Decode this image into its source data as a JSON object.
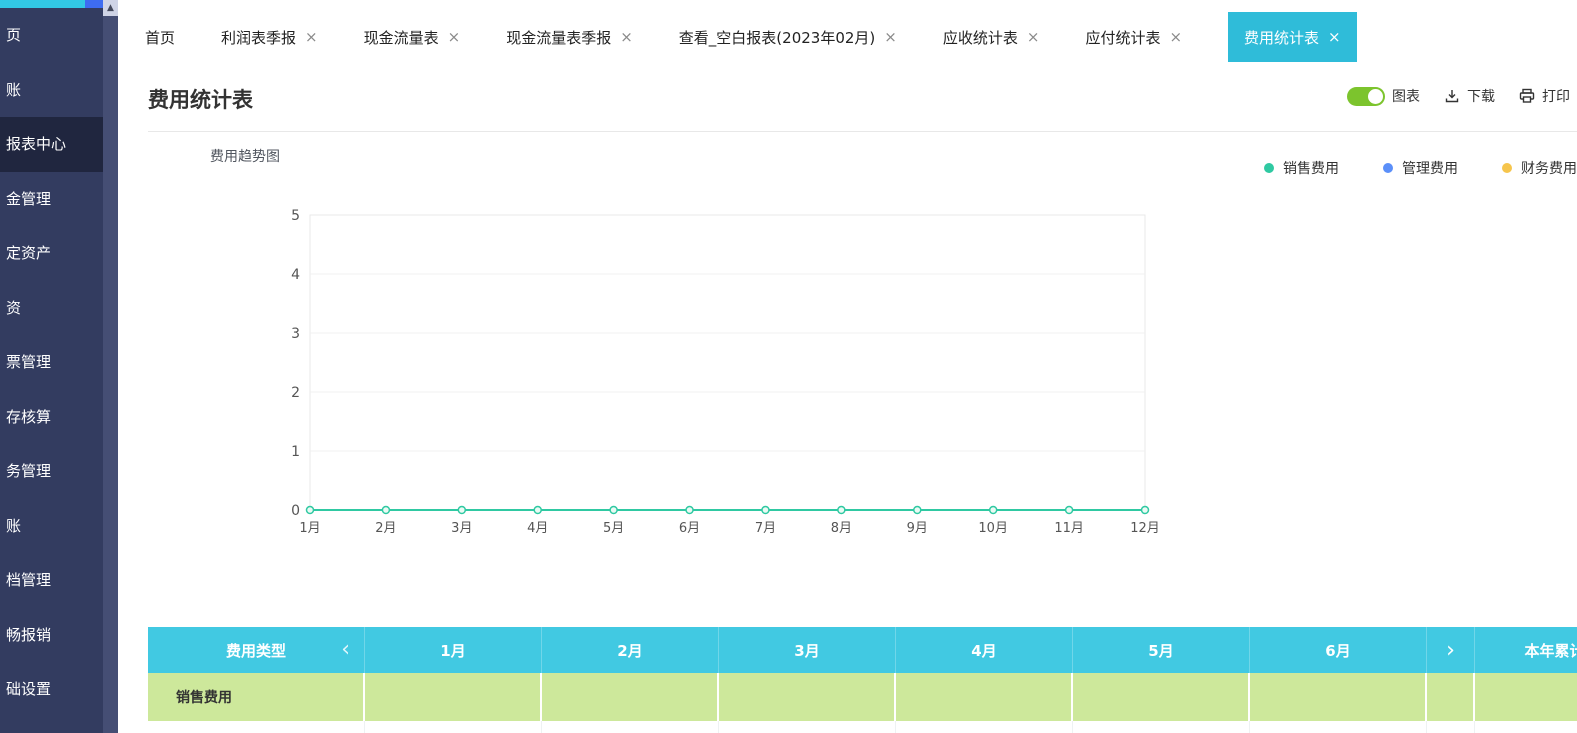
{
  "icons": {
    "close": "×",
    "prev": "‹",
    "next": "›",
    "scroll_up": "▲"
  },
  "sidebar": {
    "items": [
      {
        "label": "页",
        "active": false
      },
      {
        "label": "账",
        "active": false
      },
      {
        "label": "报表中心",
        "active": true
      },
      {
        "label": "金管理",
        "active": false
      },
      {
        "label": "定资产",
        "active": false
      },
      {
        "label": "资",
        "active": false
      },
      {
        "label": "票管理",
        "active": false
      },
      {
        "label": "存核算",
        "active": false
      },
      {
        "label": "务管理",
        "active": false
      },
      {
        "label": "账",
        "active": false
      },
      {
        "label": "档管理",
        "active": false
      },
      {
        "label": "畅报销",
        "active": false
      },
      {
        "label": "础设置",
        "active": false
      }
    ]
  },
  "tabs": [
    {
      "label": "首页",
      "closable": false,
      "active": false
    },
    {
      "label": "利润表季报",
      "closable": true,
      "active": false
    },
    {
      "label": "现金流量表",
      "closable": true,
      "active": false
    },
    {
      "label": "现金流量表季报",
      "closable": true,
      "active": false
    },
    {
      "label": "查看_空白报表(2023年02月)",
      "closable": true,
      "active": false
    },
    {
      "label": "应收统计表",
      "closable": true,
      "active": false
    },
    {
      "label": "应付统计表",
      "closable": true,
      "active": false
    },
    {
      "label": "费用统计表",
      "closable": true,
      "active": true
    }
  ],
  "toolbar": {
    "title": "费用统计表",
    "chart_toggle_label": "图表",
    "toggle_on": true,
    "download_label": "下载",
    "print_label": "打印"
  },
  "chart_data": {
    "type": "line",
    "title": "费用趋势图",
    "x": [
      "1月",
      "2月",
      "3月",
      "4月",
      "5月",
      "6月",
      "7月",
      "8月",
      "9月",
      "10月",
      "11月",
      "12月"
    ],
    "yticks": [
      0,
      1,
      2,
      3,
      4,
      5
    ],
    "ylim": [
      0,
      5
    ],
    "grid": true,
    "legend_position": "top-right",
    "series": [
      {
        "name": "销售费用",
        "color": "#2fc9a2",
        "values": [
          0,
          0,
          0,
          0,
          0,
          0,
          0,
          0,
          0,
          0,
          0,
          0
        ]
      },
      {
        "name": "管理费用",
        "color": "#5b8ff9",
        "values": [
          0,
          0,
          0,
          0,
          0,
          0,
          0,
          0,
          0,
          0,
          0,
          0
        ]
      },
      {
        "name": "财务费用",
        "color": "#f6c54c",
        "values": [
          0,
          0,
          0,
          0,
          0,
          0,
          0,
          0,
          0,
          0,
          0,
          0
        ]
      }
    ]
  },
  "table": {
    "col_type_header": "费用类型",
    "month_headers": [
      "1月",
      "2月",
      "3月",
      "4月",
      "5月",
      "6月"
    ],
    "total_header": "本年累计",
    "rows": [
      {
        "label": "销售费用",
        "values": [
          "",
          "",
          "",
          "",
          "",
          ""
        ],
        "total": ""
      }
    ]
  },
  "colors": {
    "sidebar_bg": "#333c60",
    "sidebar_active_bg": "#20263f",
    "tab_active_bg": "#2fbcd9",
    "table_header_bg": "#41c9e2",
    "row_green_bg": "#cde89b",
    "toggle_green": "#7cc42d"
  }
}
